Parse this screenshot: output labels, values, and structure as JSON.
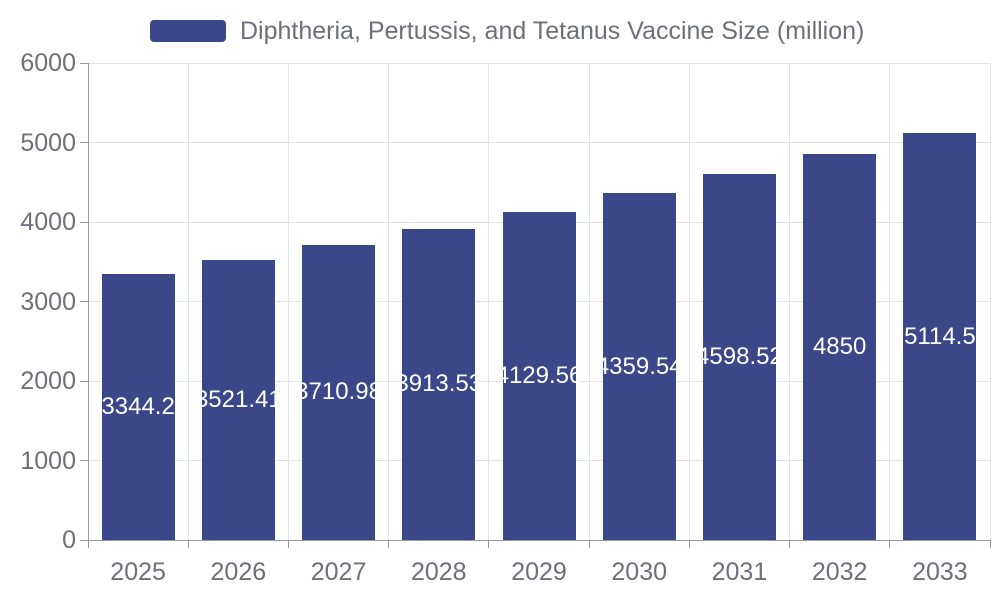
{
  "legend": {
    "label": "Diphtheria, Pertussis, and Tetanus Vaccine Size (million)"
  },
  "colors": {
    "bar": "#3A4889",
    "axis_text": "#6E7079",
    "grid_line": "#E0E4EB",
    "axis_line": "#999999",
    "bar_label_text": "#FFFFFF",
    "background": "#FFFFFF"
  },
  "chart_data": {
    "type": "bar",
    "title": "Diphtheria, Pertussis, and Tetanus Vaccine Size (million)",
    "series_name": "Diphtheria, Pertussis, and Tetanus Vaccine Size (million)",
    "categories": [
      "2025",
      "2026",
      "2027",
      "2028",
      "2029",
      "2030",
      "2031",
      "2032",
      "2033"
    ],
    "values": [
      3344.2,
      3521.41,
      3710.98,
      3913.53,
      4129.56,
      4359.54,
      4598.52,
      4850,
      5114.5
    ],
    "value_labels": [
      "3344.2",
      "3521.41",
      "3710.98",
      "3913.53",
      "4129.56",
      "4359.54",
      "4598.52",
      "4850",
      "5114.5"
    ],
    "value_label_position": "inside-center",
    "xlabel": "",
    "ylabel": "",
    "ylim": [
      0,
      6000
    ],
    "y_ticks": [
      0,
      1000,
      2000,
      3000,
      4000,
      5000,
      6000
    ],
    "grid": true,
    "legend_position": "top-left"
  }
}
